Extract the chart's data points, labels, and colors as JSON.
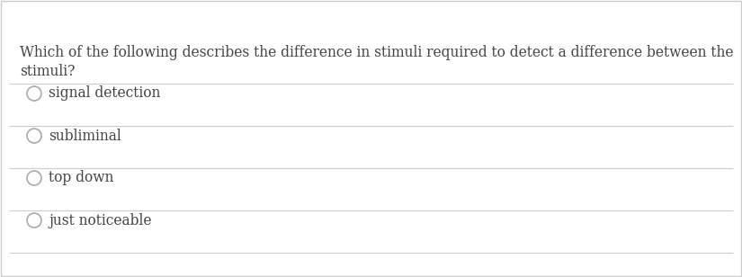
{
  "question_line1": "Which of the following describes the difference in stimuli required to detect a difference between the",
  "question_line2": "stimuli?",
  "options": [
    "signal detection",
    "subliminal",
    "top down",
    "just noticeable"
  ],
  "bg_color": "#ffffff",
  "border_color": "#cccccc",
  "text_color": "#444444",
  "line_color": "#cccccc",
  "circle_color": "#aaaaaa",
  "question_fontsize": 11.2,
  "option_fontsize": 11.2,
  "fig_width": 8.25,
  "fig_height": 3.08,
  "dpi": 100
}
